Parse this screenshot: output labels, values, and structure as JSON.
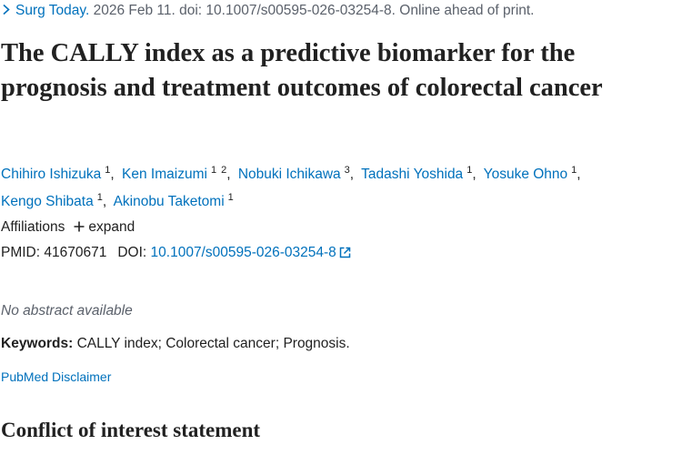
{
  "citation": {
    "journal": "Surg Today.",
    "details": "2026 Feb 11. doi: 10.1007/s00595-026-03254-8. Online ahead of print."
  },
  "title": "The CALLY index as a predictive biomarker for the prognosis and treatment outcomes of colorectal cancer",
  "authors": [
    {
      "name": "Chihiro Ishizuka",
      "affiliations": [
        1
      ]
    },
    {
      "name": "Ken Imaizumi",
      "affiliations": [
        1,
        2
      ]
    },
    {
      "name": "Nobuki Ichikawa",
      "affiliations": [
        3
      ]
    },
    {
      "name": "Tadashi Yoshida",
      "affiliations": [
        1
      ]
    },
    {
      "name": "Yosuke Ohno",
      "affiliations": [
        1
      ]
    },
    {
      "name": "Kengo Shibata",
      "affiliations": [
        1
      ]
    },
    {
      "name": "Akinobu Taketomi",
      "affiliations": [
        1
      ]
    }
  ],
  "affiliations": {
    "label": "Affiliations",
    "toggle": "expand"
  },
  "identifiers": {
    "pmid_label": "PMID:",
    "pmid": "41670671",
    "doi_label": "DOI:",
    "doi": "10.1007/s00595-026-03254-8"
  },
  "abstract_note": "No abstract available",
  "keywords": {
    "label": "Keywords:",
    "text": "CALLY index; Colorectal cancer; Prognosis."
  },
  "disclaimer": "PubMed Disclaimer",
  "section_heading": "Conflict of interest statement"
}
